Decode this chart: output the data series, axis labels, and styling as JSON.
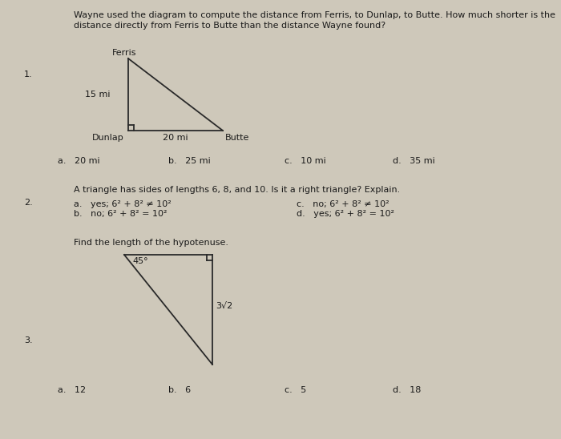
{
  "bg_color": "#cec8ba",
  "text_color": "#1a1a1a",
  "title_q1": "Wayne used the diagram to compute the distance from Ferris, to Dunlap, to Butte. How much shorter is the\ndistance directly from Ferris to Butte than the distance Wayne found?",
  "q1_number": "1.",
  "q1_label_left": "15 mi",
  "q1_label_bottom": "20 mi",
  "q1_vertex_top": "Ferris",
  "q1_vertex_bl": "Dunlap",
  "q1_vertex_br": "Butte",
  "q1_ans_a": "a.   20 mi",
  "q1_ans_b": "b.   25 mi",
  "q1_ans_c": "c.   10 mi",
  "q1_ans_d": "d.   35 mi",
  "q2_prompt": "A triangle has sides of lengths 6, 8, and 10. Is it a right triangle? Explain.",
  "q2_number": "2.",
  "q2_ans_a": "a.   yes; 6² + 8² ≠ 10²",
  "q2_ans_b": "b.   no; 6² + 8² = 10²",
  "q2_ans_c": "c.   no; 6² + 8² ≠ 10²",
  "q2_ans_d": "d.   yes; 6² + 8² = 10²",
  "q3_prompt": "Find the length of the hypotenuse.",
  "q3_number": "3.",
  "q3_angle": "45°",
  "q3_side": "3√2",
  "q3_ans_a": "a.   12",
  "q3_ans_b": "b.   6",
  "q3_ans_c": "c.   5",
  "q3_ans_d": "d.   18"
}
